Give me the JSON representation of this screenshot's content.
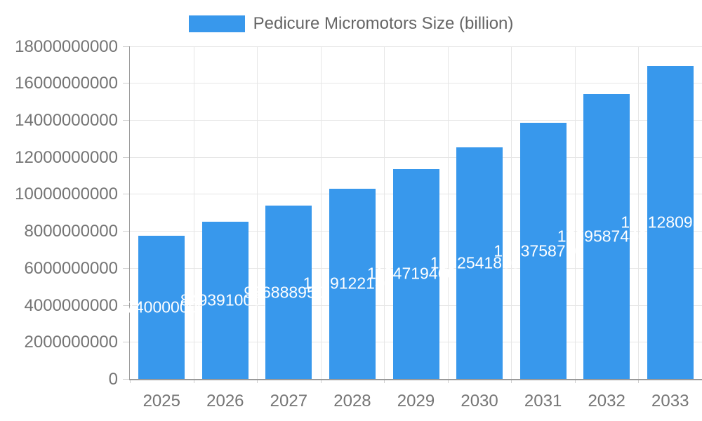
{
  "legend": {
    "label": "Pedicure Micromotors Size (billion)"
  },
  "colors": {
    "bar": "#3898ec",
    "grid": "#e6e6e6",
    "axis": "#9a9a9a",
    "tick_text": "#757575",
    "title_text": "#666666",
    "value_label_text": "#ffffff"
  },
  "chart_data": {
    "type": "bar",
    "title": "Pedicure Micromotors Size (billion)",
    "categories": [
      "2025",
      "2026",
      "2027",
      "2028",
      "2029",
      "2030",
      "2031",
      "2032",
      "2033"
    ],
    "values": [
      7740000000,
      8493910000,
      9368889500,
      10291221800,
      11347194600,
      12525418300,
      13837587100,
      15395874400,
      16912809500
    ],
    "value_labels": [
      "7740000000",
      "8493910000",
      "9368889500",
      "10291221800",
      "11347194600",
      "12525418300",
      "13837587100",
      "15395874400",
      "16912809500"
    ],
    "xlabel": "",
    "ylabel": "",
    "ylim": [
      0,
      18000000000
    ],
    "ytick_step": 2000000000,
    "yticks": [
      "0",
      "2000000000",
      "4000000000",
      "6000000000",
      "8000000000",
      "10000000000",
      "12000000000",
      "14000000000",
      "16000000000",
      "18000000000"
    ],
    "grid": true,
    "legend_position": "top",
    "value_label_anchor": "bar-center"
  }
}
